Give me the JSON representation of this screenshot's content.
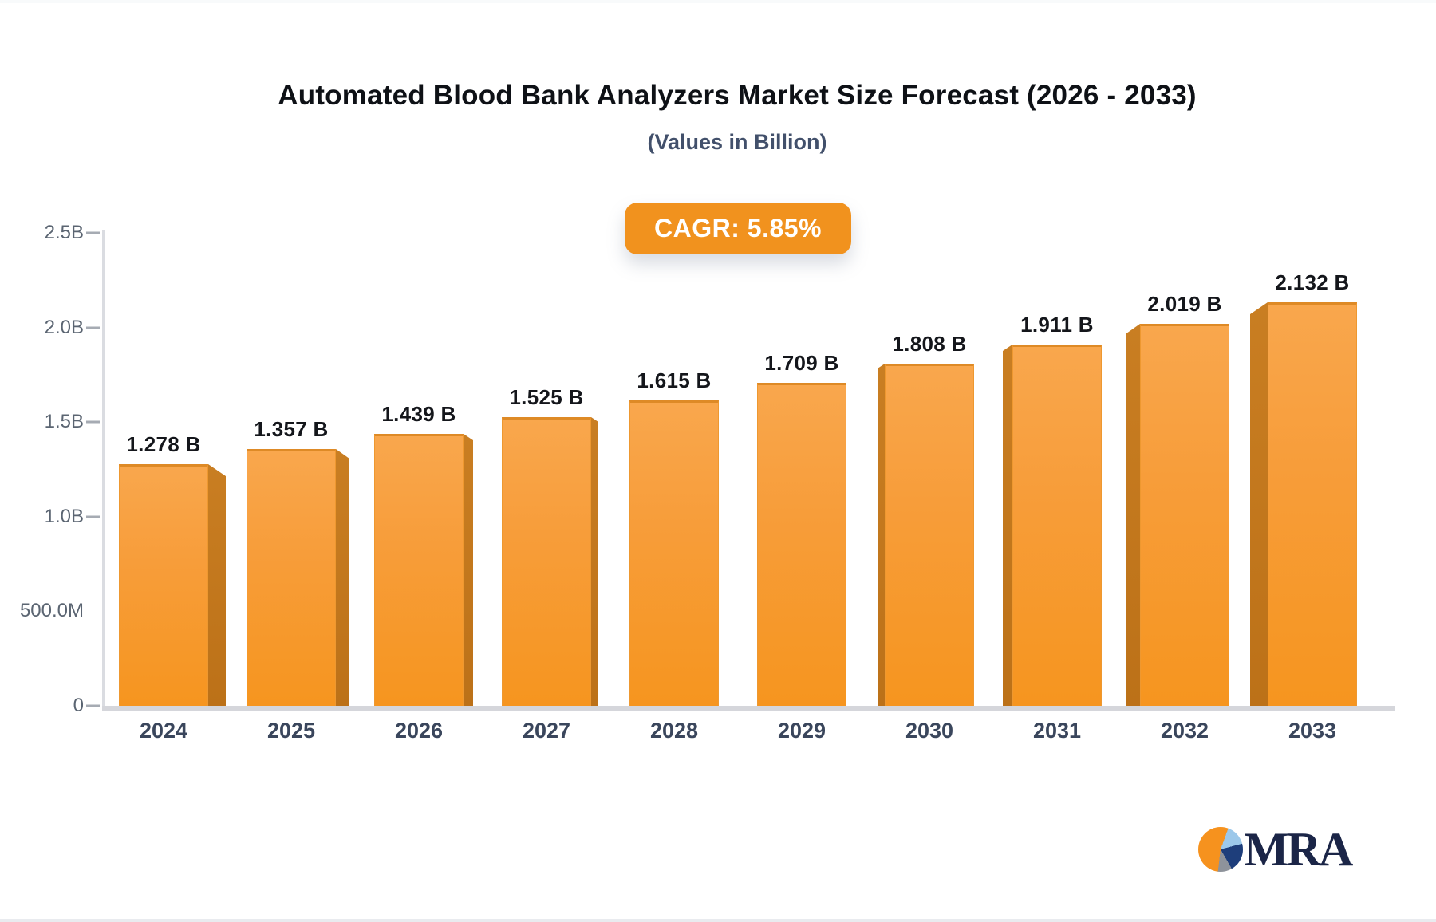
{
  "header": {
    "title": "Automated Blood Bank Analyzers Market Size Forecast (2026 - 2033)",
    "subtitle": "(Values in Billion)",
    "cagr_label": "CAGR: 5.85%"
  },
  "footer": {
    "logo_icon": "pie-chart-icon",
    "logo_text": "MRA"
  },
  "colors": {
    "accent_orange": "#F6921E",
    "bar_face_top": "#F9A74D",
    "bar_face_bottom": "#F6951F",
    "bar_side": "#BE741C",
    "badge_bg": "#F1921E",
    "axis_gray": "#D5D6DB",
    "logo_navy": "#1B2547",
    "logo_light_blue": "#9CC8EA",
    "logo_gray": "#8E939B"
  },
  "chart_data": {
    "type": "bar",
    "title": "Automated Blood Bank Analyzers Market Size Forecast (2026 - 2033)",
    "subtitle": "(Values in Billion)",
    "annotation": "CAGR: 5.85%",
    "categories": [
      "2024",
      "2025",
      "2026",
      "2027",
      "2028",
      "2029",
      "2030",
      "2031",
      "2032",
      "2033"
    ],
    "values": [
      1.278,
      1.357,
      1.439,
      1.525,
      1.615,
      1.709,
      1.808,
      1.911,
      2.019,
      2.132
    ],
    "value_labels": [
      "1.278 B",
      "1.357 B",
      "1.439 B",
      "1.525 B",
      "1.615 B",
      "1.709 B",
      "1.808 B",
      "1.911 B",
      "2.019 B",
      "2.132 B"
    ],
    "xlabel": "",
    "ylabel": "",
    "ylim": [
      0,
      2.5
    ],
    "grid": false,
    "legend": false,
    "yaxis_ticks": [
      {
        "label": "0",
        "value": 0,
        "tick_mark": true
      },
      {
        "label": "500.0M",
        "value": 0.5,
        "tick_mark": false
      },
      {
        "label": "1.0B",
        "value": 1.0,
        "tick_mark": true
      },
      {
        "label": "1.5B",
        "value": 1.5,
        "tick_mark": true
      },
      {
        "label": "2.0B",
        "value": 2.0,
        "tick_mark": true
      },
      {
        "label": "2.5B",
        "value": 2.5,
        "tick_mark": true
      }
    ]
  }
}
